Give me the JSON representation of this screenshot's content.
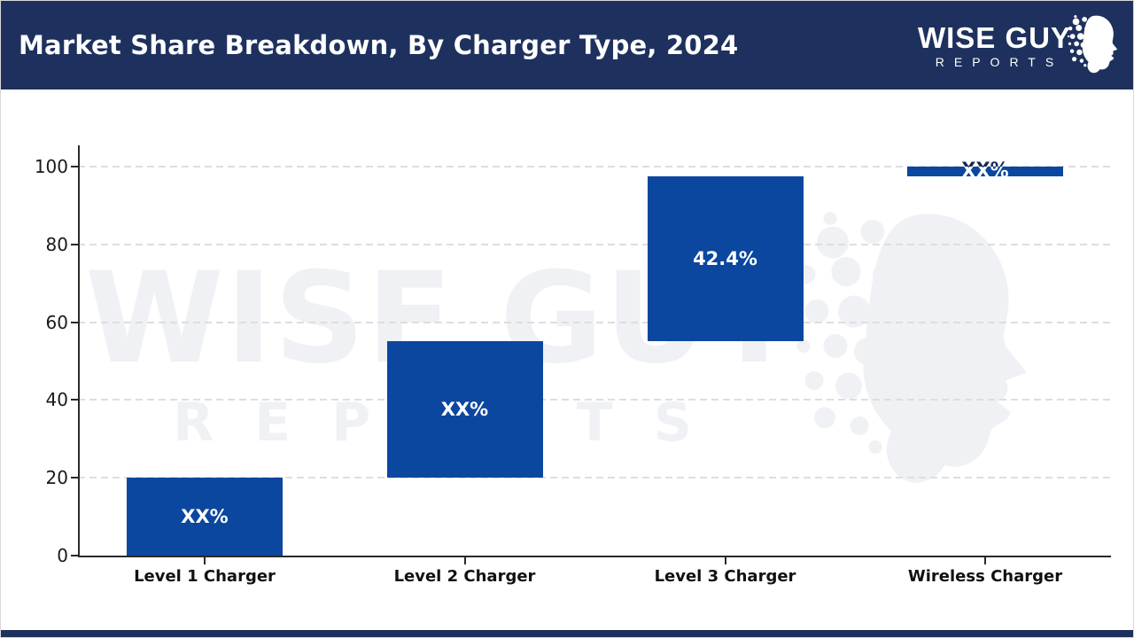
{
  "header": {
    "title": "Market Share Breakdown, By Charger Type, 2024",
    "logo": {
      "line1": "WISE GUY",
      "line2": "REPORTS"
    }
  },
  "watermark": {
    "line1": "WISE GUY",
    "line2": "REPORTS"
  },
  "colors": {
    "header_bg": "#1e315e",
    "footer_bg": "#1e315e",
    "bar": "#0b479f",
    "grid": "#dcdee0",
    "axis": "#2a2a2a",
    "bar_label": "#ffffff",
    "watermark": "#eff1f4"
  },
  "chart_data": {
    "type": "bar",
    "subtype": "waterfall",
    "title": "Market Share Breakdown, By Charger Type, 2024",
    "xlabel": "",
    "ylabel": "",
    "categories": [
      "Level 1 Charger",
      "Level 2 Charger",
      "Level 3 Charger",
      "Wireless Charger"
    ],
    "bars": [
      {
        "category": "Level 1 Charger",
        "label": "XX%",
        "base": 0,
        "top": 20
      },
      {
        "category": "Level 2 Charger",
        "label": "XX%",
        "base": 20,
        "top": 55.2
      },
      {
        "category": "Level 3 Charger",
        "label": "42.4%",
        "base": 55.2,
        "top": 97.6
      },
      {
        "category": "Wireless Charger",
        "label": "XX%",
        "base": 97.6,
        "top": 100
      }
    ],
    "yticks": [
      0,
      20,
      40,
      60,
      80,
      100
    ],
    "ylim": [
      0,
      100
    ],
    "grid": "dashed-horizontal",
    "legend": "none"
  }
}
